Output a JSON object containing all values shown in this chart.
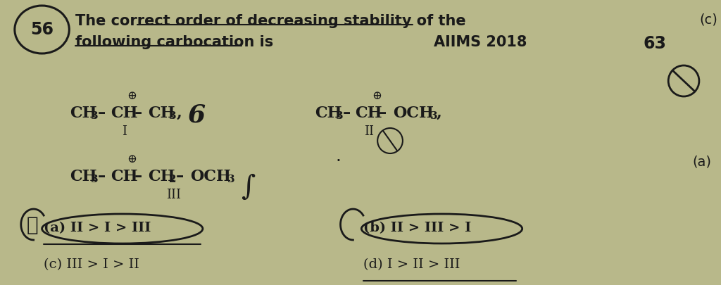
{
  "background_color": "#b8b88a",
  "text_color": "#1a1a1a",
  "fontsize_num": 17,
  "fontsize_title": 15,
  "fontsize_struct": 16,
  "fontsize_label": 13,
  "fontsize_options": 14,
  "fontsize_aiims": 15,
  "title_line1": "The correct order of decreasing stability of the",
  "title_line2": "following carbocation is",
  "aiims": "AIIMS 2018",
  "num63": "63",
  "opt_a": "(a) II > I > III",
  "opt_b": "(b) II > III > I",
  "opt_c": "(c) III > I > II",
  "opt_d": "(d) I > II > III"
}
